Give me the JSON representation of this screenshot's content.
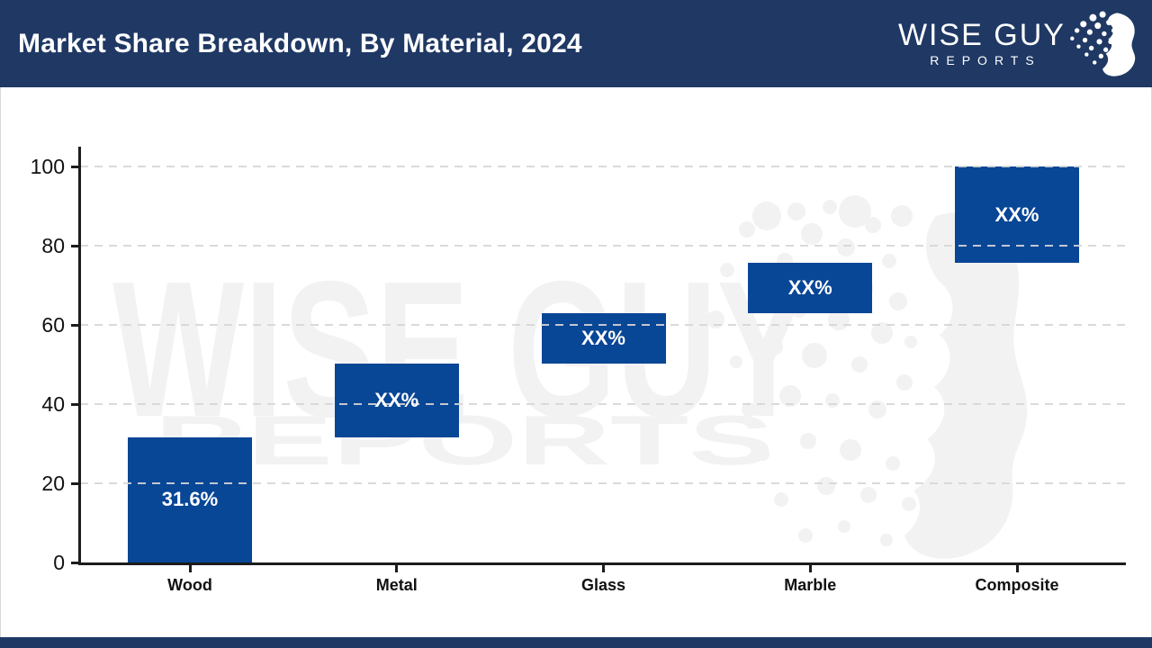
{
  "header": {
    "title": "Market Share Breakdown, By Material, 2024",
    "logo": {
      "line1": "WISE GUY",
      "line2": "REPORTS"
    }
  },
  "watermark": {
    "line1": "WISE GUY",
    "line2": "REPORTS"
  },
  "colors": {
    "header_bg": "#1f3864",
    "footer_bg": "#1f3864",
    "bar": "#084696",
    "bar_label": "#ffffff",
    "grid": "#d6d6d6",
    "axis": "#1c1c1c",
    "tick_text": "#111111",
    "watermark": "#f2f2f2"
  },
  "chart_data": {
    "type": "bar",
    "subtype": "waterfall",
    "title": "Market Share Breakdown, By Material, 2024",
    "categories": [
      "Wood",
      "Metal",
      "Glass",
      "Marble",
      "Composite"
    ],
    "segments": [
      {
        "category": "Wood",
        "start": 0,
        "end": 31.6,
        "delta": 31.6,
        "label": "31.6%"
      },
      {
        "category": "Metal",
        "start": 31.6,
        "end": 50.2,
        "delta": 18.6,
        "label": "XX%"
      },
      {
        "category": "Glass",
        "start": 50.2,
        "end": 63.0,
        "delta": 12.8,
        "label": "XX%"
      },
      {
        "category": "Marble",
        "start": 63.0,
        "end": 75.6,
        "delta": 12.6,
        "label": "XX%"
      },
      {
        "category": "Composite",
        "start": 75.6,
        "end": 100.0,
        "delta": 24.4,
        "label": "XX%"
      }
    ],
    "xlabel": "",
    "ylabel": "",
    "yticks": [
      0,
      20,
      40,
      60,
      80,
      100
    ],
    "ylim": [
      0,
      105
    ],
    "grid": "dashed-horizontal",
    "legend": "none"
  }
}
